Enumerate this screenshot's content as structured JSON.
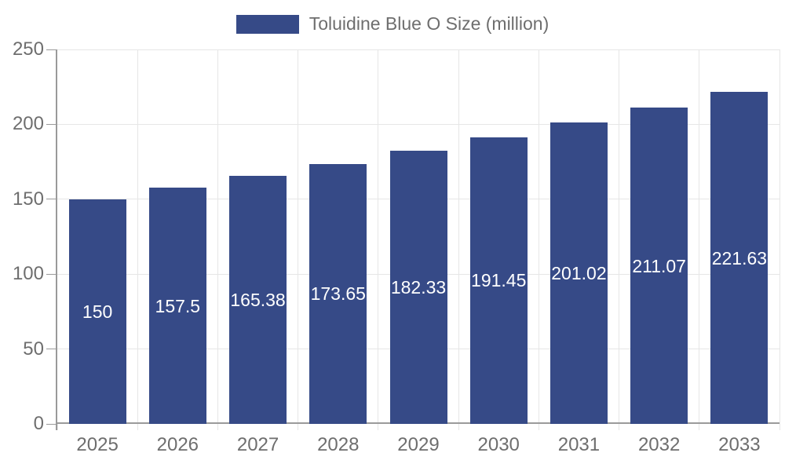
{
  "chart_data": {
    "type": "bar",
    "title": "",
    "legend": [
      "Toluidine Blue O Size (million)"
    ],
    "legend_position": "top",
    "categories": [
      "2025",
      "2026",
      "2027",
      "2028",
      "2029",
      "2030",
      "2031",
      "2032",
      "2033"
    ],
    "values": [
      150,
      157.5,
      165.38,
      173.65,
      182.33,
      191.45,
      201.02,
      211.07,
      221.63
    ],
    "value_labels": [
      "150",
      "157.5",
      "165.38",
      "173.65",
      "182.33",
      "191.45",
      "201.02",
      "211.07",
      "221.63"
    ],
    "xlabel": "",
    "ylabel": "",
    "ylim": [
      0,
      250
    ],
    "yticks": [
      0,
      50,
      100,
      150,
      200,
      250
    ],
    "ytick_labels": [
      "0",
      "50",
      "100",
      "150",
      "200",
      "250"
    ],
    "grid": true
  },
  "colors": {
    "bar": "#364A87",
    "grid": "#E6E6E6",
    "axis_line": "#9A9A9A",
    "axis_text": "#6E6E6E",
    "value_text": "#FFFFFF",
    "background": "#FFFFFF"
  }
}
